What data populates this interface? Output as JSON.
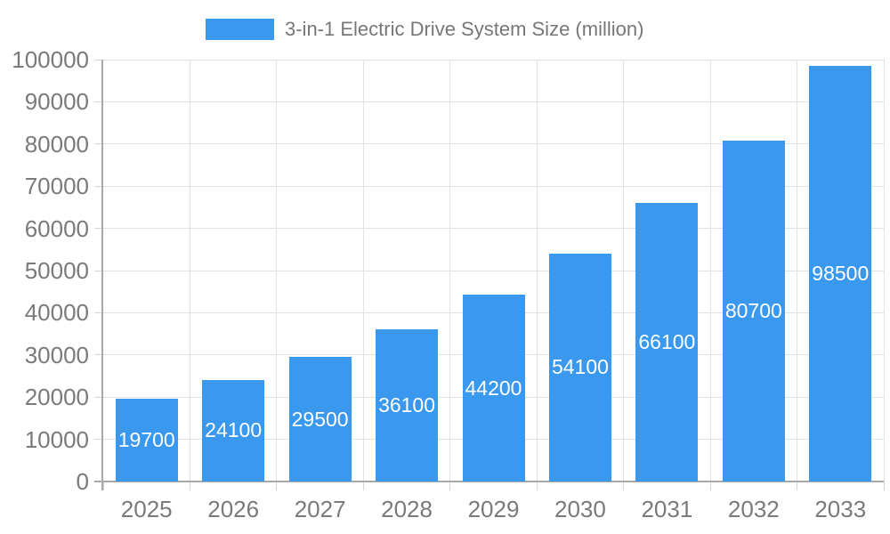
{
  "legend": {
    "label": "3-in-1 Electric Drive System Size (million)"
  },
  "chart_data": {
    "type": "bar",
    "title": "",
    "series_name": "3-in-1 Electric Drive System Size (million)",
    "categories": [
      "2025",
      "2026",
      "2027",
      "2028",
      "2029",
      "2030",
      "2031",
      "2032",
      "2033"
    ],
    "values": [
      19700,
      24100,
      29500,
      36100,
      44200,
      54100,
      66100,
      80700,
      98500
    ],
    "data_labels": [
      "19700",
      "24100",
      "29500",
      "36100",
      "44200",
      "54100",
      "66100",
      "80700",
      "98500"
    ],
    "xlabel": "",
    "ylabel": "",
    "ylim": [
      0,
      100000
    ],
    "ytick_step": 10000,
    "yticks": [
      0,
      10000,
      20000,
      30000,
      40000,
      50000,
      60000,
      70000,
      80000,
      90000,
      100000
    ],
    "grid": true,
    "legend_position": "top",
    "colors": {
      "bar_fill": "#3a99ee",
      "bar_label_text": "#ffffff",
      "axis_text": "#7a7a7a",
      "legend_text": "#777777",
      "gridline": "#e2e2e2",
      "tick_mark": "#d5d5d5",
      "axis_line": "#a8a8a8",
      "background": "#ffffff"
    }
  }
}
